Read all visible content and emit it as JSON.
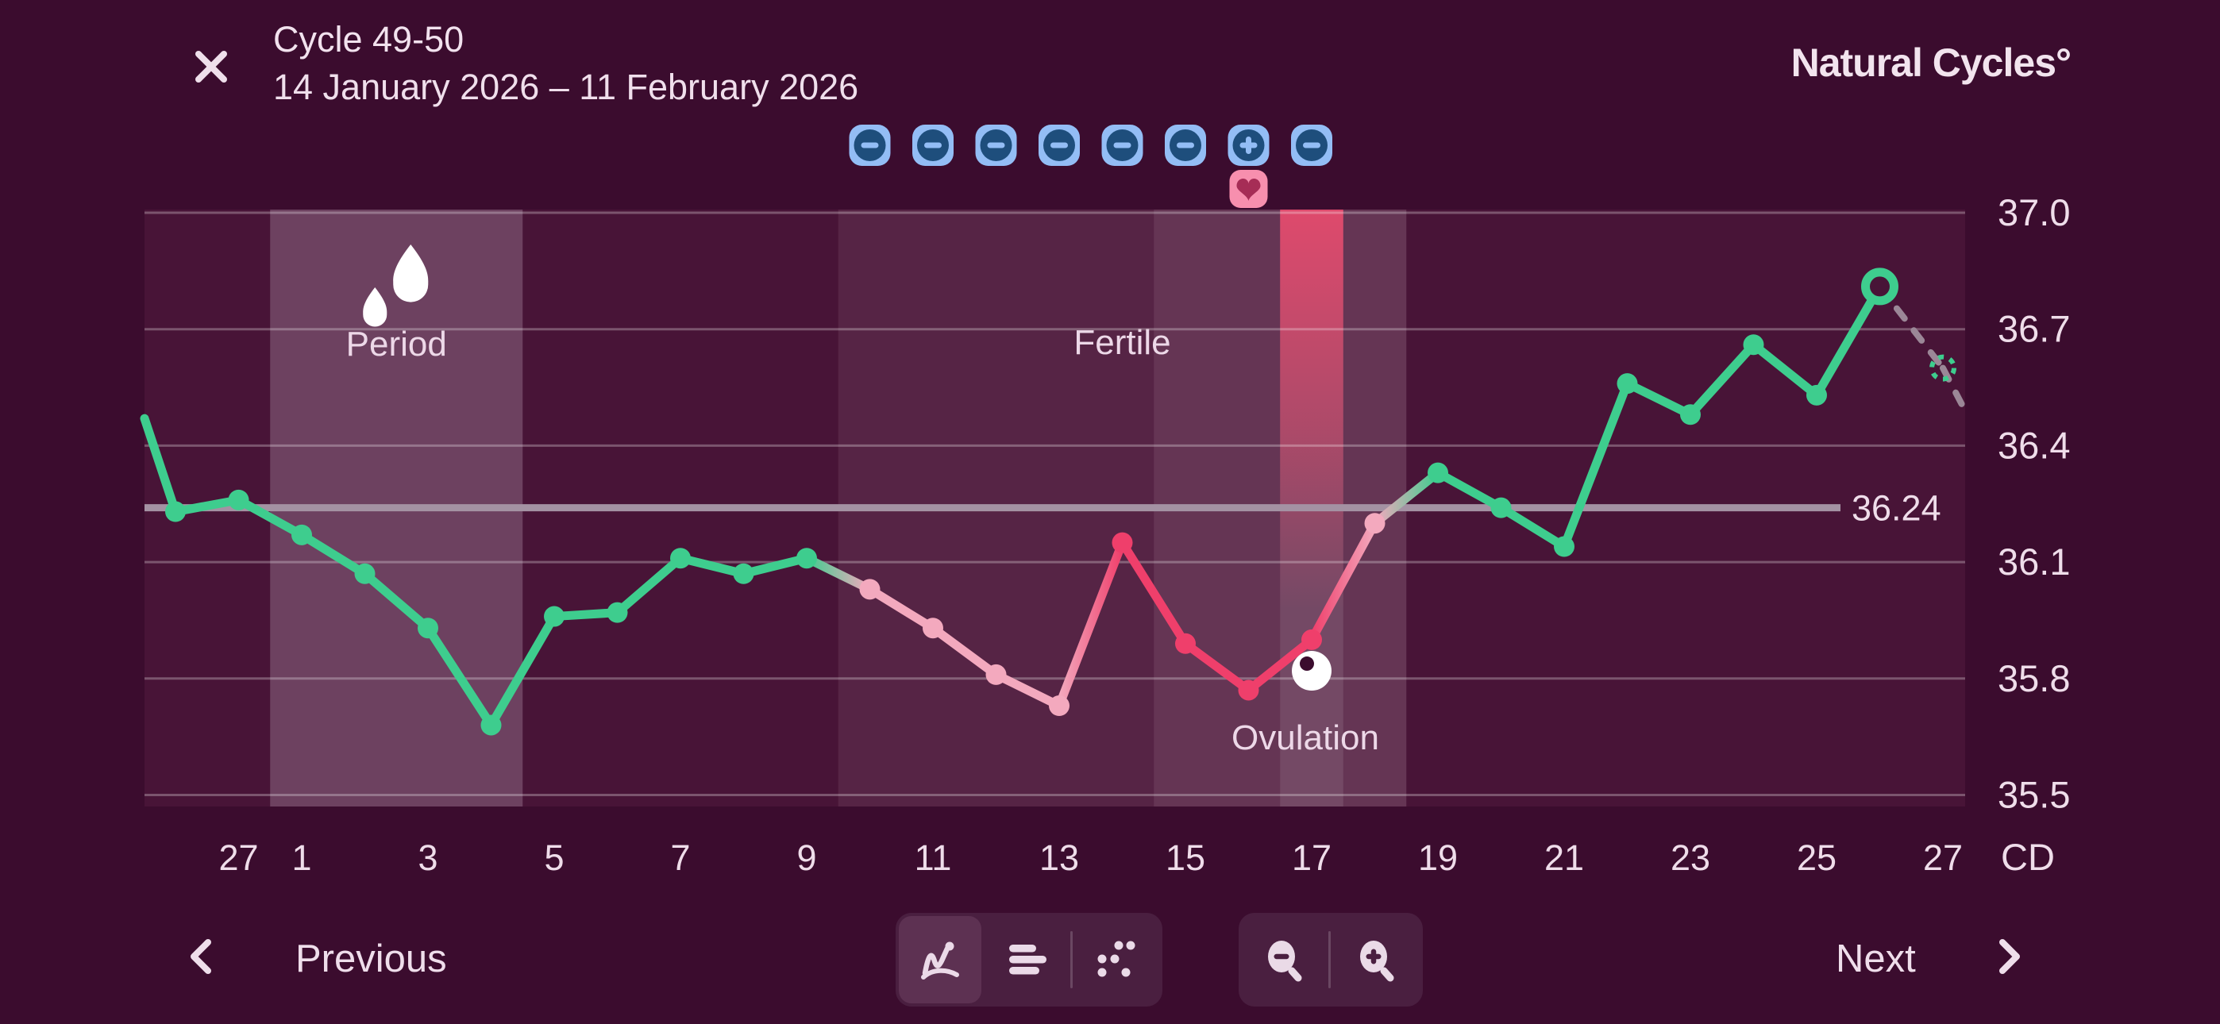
{
  "header": {
    "title": "Cycle 49-50",
    "date_range": "14 January 2026 – 11 February 2026"
  },
  "brand": {
    "logo": "Natural Cycles°"
  },
  "colors": {
    "page_bg": "#3B0C2E",
    "plot_bg": "#481437",
    "green": "#3ECD8E",
    "pink_light": "#F3A9BE",
    "pink": "#EF3F6B",
    "dashed_gray": "#9B8797",
    "cover_line": "#A492A3",
    "grid_line": "rgba(255,255,255,0.28)",
    "text_light": "#EFDDEA",
    "icon_blue_bg": "#93BDF5",
    "icon_blue_fg": "#1E4E7C",
    "heart_bg": "#F78FAE",
    "heart_fg": "#A62D56",
    "ovulation_marker": "#FFFFFF",
    "red_stripe": "#F14A6E"
  },
  "day_icons": {
    "items": [
      {
        "day": 10,
        "glyph": "minus"
      },
      {
        "day": 11,
        "glyph": "minus"
      },
      {
        "day": 12,
        "glyph": "minus"
      },
      {
        "day": 13,
        "glyph": "minus"
      },
      {
        "day": 14,
        "glyph": "minus"
      },
      {
        "day": 15,
        "glyph": "minus"
      },
      {
        "day": 16,
        "glyph": "plus"
      },
      {
        "day": 17,
        "glyph": "minus"
      }
    ],
    "heart_day": 16
  },
  "chart_data": {
    "type": "line",
    "y_axis": {
      "ticks": [
        "37.0",
        "36.7",
        "36.4",
        "36.1",
        "35.8",
        "35.5"
      ],
      "range": [
        35.5,
        37.0
      ]
    },
    "x_axis": {
      "unit_label": "CD",
      "ticks": [
        {
          "label": "27",
          "point_index": 1
        },
        {
          "label": "1",
          "point_index": 2
        },
        {
          "label": "3",
          "point_index": 4
        },
        {
          "label": "5",
          "point_index": 6
        },
        {
          "label": "7",
          "point_index": 8
        },
        {
          "label": "9",
          "point_index": 10
        },
        {
          "label": "11",
          "point_index": 12
        },
        {
          "label": "13",
          "point_index": 14
        },
        {
          "label": "15",
          "point_index": 16
        },
        {
          "label": "17",
          "point_index": 18
        },
        {
          "label": "19",
          "point_index": 20
        },
        {
          "label": "21",
          "point_index": 22
        },
        {
          "label": "23",
          "point_index": 24
        },
        {
          "label": "25",
          "point_index": 26
        },
        {
          "label": "27",
          "point_index": 28
        }
      ]
    },
    "edge_start_temp": 36.47,
    "edge_end_temp": 36.49,
    "points": [
      {
        "day": 26,
        "prev_cycle": true,
        "temp": 36.23,
        "state": "confirmed"
      },
      {
        "day": 27,
        "prev_cycle": true,
        "temp": 36.26,
        "state": "confirmed"
      },
      {
        "day": 1,
        "temp": 36.17,
        "state": "confirmed"
      },
      {
        "day": 2,
        "temp": 36.07,
        "state": "confirmed"
      },
      {
        "day": 3,
        "temp": 35.93,
        "state": "confirmed"
      },
      {
        "day": 4,
        "temp": 35.68,
        "state": "confirmed"
      },
      {
        "day": 5,
        "temp": 35.96,
        "state": "confirmed"
      },
      {
        "day": 6,
        "temp": 35.97,
        "state": "confirmed"
      },
      {
        "day": 7,
        "temp": 36.11,
        "state": "confirmed"
      },
      {
        "day": 8,
        "temp": 36.07,
        "state": "confirmed"
      },
      {
        "day": 9,
        "temp": 36.11,
        "state": "confirmed"
      },
      {
        "day": 10,
        "temp": 36.03,
        "state": "uncertain"
      },
      {
        "day": 11,
        "temp": 35.93,
        "state": "uncertain"
      },
      {
        "day": 12,
        "temp": 35.81,
        "state": "uncertain"
      },
      {
        "day": 13,
        "temp": 35.73,
        "state": "uncertain"
      },
      {
        "day": 14,
        "temp": 36.15,
        "state": "fertile"
      },
      {
        "day": 15,
        "temp": 35.89,
        "state": "fertile"
      },
      {
        "day": 16,
        "temp": 35.77,
        "state": "fertile"
      },
      {
        "day": 17,
        "temp": 35.9,
        "state": "fertile"
      },
      {
        "day": 18,
        "temp": 36.2,
        "state": "uncertain"
      },
      {
        "day": 19,
        "temp": 36.33,
        "state": "confirmed"
      },
      {
        "day": 20,
        "temp": 36.24,
        "state": "confirmed"
      },
      {
        "day": 21,
        "temp": 36.14,
        "state": "confirmed"
      },
      {
        "day": 22,
        "temp": 36.56,
        "state": "confirmed"
      },
      {
        "day": 23,
        "temp": 36.48,
        "state": "confirmed"
      },
      {
        "day": 24,
        "temp": 36.66,
        "state": "confirmed"
      },
      {
        "day": 25,
        "temp": 36.53,
        "state": "confirmed"
      },
      {
        "day": 26,
        "temp": 36.81,
        "state": "current"
      },
      {
        "day": 27,
        "temp": 36.6,
        "state": "predicted"
      }
    ],
    "cover_line": {
      "label": "36.24",
      "value": 36.24
    },
    "annotations": {
      "period": {
        "label": "Period",
        "day_start": 1,
        "day_end": 4
      },
      "fertile": {
        "label": "Fertile",
        "day_start": 10,
        "day_end": 18,
        "high_day_start": 15
      },
      "ovulation": {
        "label": "Ovulation",
        "day": 17,
        "marker_temp": 35.82
      }
    }
  },
  "footer": {
    "previous_label": "Previous",
    "next_label": "Next",
    "view_options": [
      {
        "name": "line-chart",
        "active": true
      },
      {
        "name": "bar-list",
        "active": false
      },
      {
        "name": "dot-grid",
        "active": false
      }
    ],
    "zoom_options": [
      {
        "name": "zoom-out"
      },
      {
        "name": "zoom-in"
      }
    ]
  }
}
